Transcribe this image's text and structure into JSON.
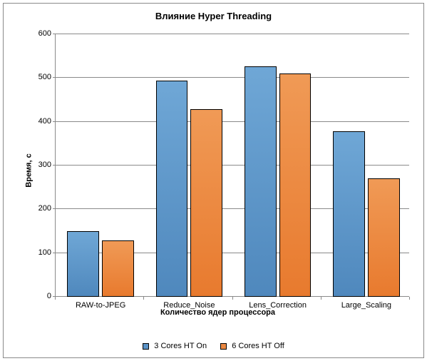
{
  "chart": {
    "type": "bar",
    "title": "Влияние Hyper Threading",
    "title_fontsize": 13,
    "xlabel": "Количество  ядер процессора",
    "ylabel": "Время, с",
    "label_fontsize": 11,
    "categories": [
      "RAW-to-JPEG",
      "Reduce_Noise",
      "Lens_Correction",
      "Large_Scaling"
    ],
    "series": [
      {
        "name": "3 Cores HT On",
        "color": "#5b93c7",
        "values": [
          150,
          493,
          525,
          378
        ]
      },
      {
        "name": "6 Cores HT Off",
        "color": "#eb8842",
        "values": [
          128,
          427,
          509,
          270
        ]
      }
    ],
    "ylim": [
      0,
      600
    ],
    "ytick_step": 100,
    "yticks": [
      "0",
      "100",
      "200",
      "300",
      "400",
      "500",
      "600"
    ],
    "background_color": "#ffffff",
    "grid_color": "#8a8a8a",
    "bar_width_pct": 9.0,
    "bar_gap_pct": 0.8,
    "group_spacing_pct": 25.0,
    "group_start_pct": 3.5,
    "tick_fontsize": 11
  }
}
